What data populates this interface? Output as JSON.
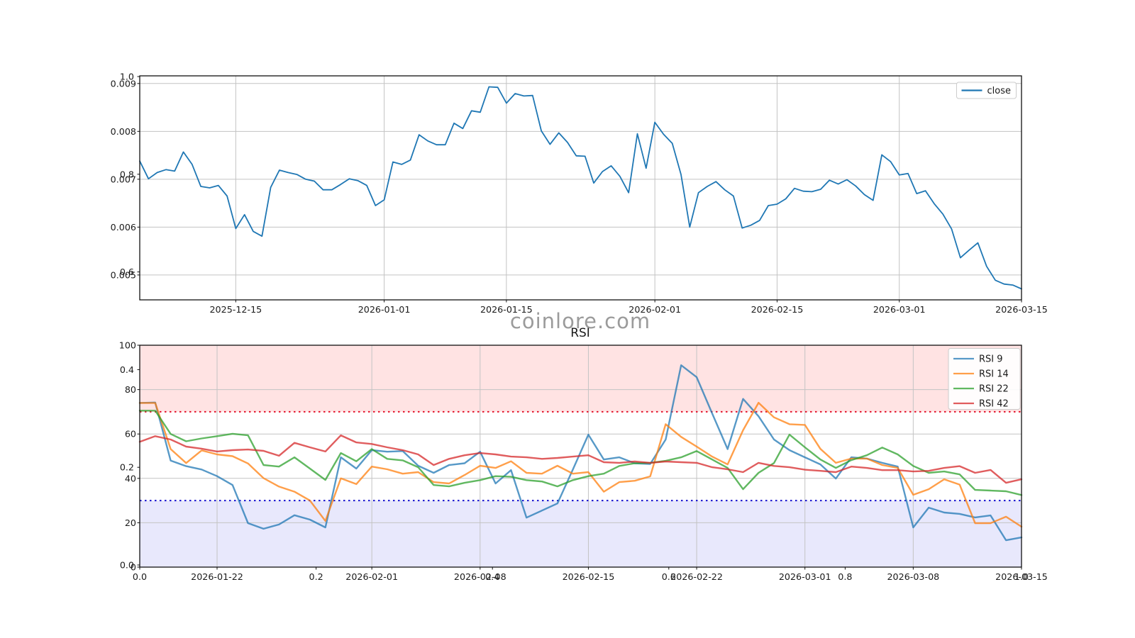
{
  "watermark": "coinlore.com",
  "hidden_axis": {
    "xtick_labels": [
      "0.0",
      "0.2",
      "0.4",
      "0.6",
      "0.8",
      "1.0"
    ],
    "ytick_labels": [
      "1.0",
      "0.8",
      "0.6",
      "0.4",
      "0.2",
      "0.0"
    ]
  },
  "chart_data": [
    {
      "id": "price",
      "type": "line",
      "title": "",
      "legend_position": "upper right",
      "grid": true,
      "x_start": "2025-12-04",
      "x_end": "2026-03-15",
      "xticks": [
        {
          "label": "2025-12-15",
          "f": 0.1089
        },
        {
          "label": "2026-01-01",
          "f": 0.2772
        },
        {
          "label": "2026-01-15",
          "f": 0.4158
        },
        {
          "label": "2026-02-01",
          "f": 0.5842
        },
        {
          "label": "2026-02-15",
          "f": 0.7228
        },
        {
          "label": "2026-03-01",
          "f": 0.8614
        },
        {
          "label": "2026-03-15",
          "f": 1.0
        }
      ],
      "yticks": [
        {
          "label": "0.009",
          "v": 0.009
        },
        {
          "label": "0.008",
          "v": 0.008
        },
        {
          "label": "0.007",
          "v": 0.007
        },
        {
          "label": "0.006",
          "v": 0.006
        },
        {
          "label": "0.005",
          "v": 0.005
        }
      ],
      "ylim": [
        0.00448,
        0.00916
      ],
      "series": [
        {
          "name": "close",
          "color": "#1f77b4",
          "width": 1.8,
          "values": [
            0.00738,
            0.00701,
            0.00714,
            0.0072,
            0.00717,
            0.00757,
            0.00731,
            0.00685,
            0.00682,
            0.00687,
            0.00665,
            0.00597,
            0.00626,
            0.00591,
            0.00581,
            0.00683,
            0.00719,
            0.00714,
            0.0071,
            0.007,
            0.00696,
            0.00678,
            0.00678,
            0.00689,
            0.00701,
            0.00697,
            0.00687,
            0.00645,
            0.00657,
            0.00736,
            0.00731,
            0.0074,
            0.00793,
            0.0078,
            0.00772,
            0.00772,
            0.00817,
            0.00806,
            0.00843,
            0.0084,
            0.00893,
            0.00892,
            0.00859,
            0.00879,
            0.00874,
            0.00875,
            0.00801,
            0.00773,
            0.00797,
            0.00777,
            0.00749,
            0.00748,
            0.00692,
            0.00716,
            0.00728,
            0.00706,
            0.00672,
            0.00795,
            0.00723,
            0.00819,
            0.00794,
            0.00775,
            0.0071,
            0.006,
            0.00672,
            0.00685,
            0.00695,
            0.00678,
            0.00665,
            0.00598,
            0.00604,
            0.00614,
            0.00645,
            0.00648,
            0.00659,
            0.00681,
            0.00675,
            0.00674,
            0.00679,
            0.00698,
            0.0069,
            0.00699,
            0.00686,
            0.00668,
            0.00656,
            0.00751,
            0.00737,
            0.00709,
            0.00712,
            0.0067,
            0.00676,
            0.00649,
            0.00627,
            0.00596,
            0.00536,
            0.00552,
            0.00567,
            0.00518,
            0.00489,
            0.00481,
            0.00479,
            0.00471
          ]
        }
      ]
    },
    {
      "id": "rsi",
      "type": "line",
      "title": "RSI",
      "legend_position": "upper right",
      "grid": true,
      "x_start": "2026-01-17",
      "x_end": "2026-03-15",
      "overbought_level": 70,
      "oversold_level": 30,
      "overbought_fill": "rgba(255,0,0,0.11)",
      "oversold_fill": "rgba(30,30,230,0.10)",
      "overbought_line_color": "#e3132b",
      "oversold_line_color": "#1612cf",
      "xticks": [
        {
          "label": "2026-01-22",
          "f": 0.0877
        },
        {
          "label": "2026-02-01",
          "f": 0.2632
        },
        {
          "label": "2026-02-08",
          "f": 0.386
        },
        {
          "label": "2026-02-15",
          "f": 0.5088
        },
        {
          "label": "2026-02-22",
          "f": 0.6316
        },
        {
          "label": "2026-03-01",
          "f": 0.7544
        },
        {
          "label": "2026-03-08",
          "f": 0.8772
        },
        {
          "label": "2026-03-15",
          "f": 1.0
        }
      ],
      "yticks": [
        {
          "label": "100",
          "v": 100
        },
        {
          "label": "80",
          "v": 80
        },
        {
          "label": "60",
          "v": 60
        },
        {
          "label": "40",
          "v": 40
        },
        {
          "label": "20",
          "v": 20
        },
        {
          "label": "0",
          "v": 0
        }
      ],
      "ylim": [
        0,
        100
      ],
      "series": [
        {
          "name": "RSI 9",
          "color": "rgba(31,119,180,0.75)",
          "width": 2.4,
          "values": [
            74.0,
            74.2,
            48.0,
            45.5,
            44.0,
            41.0,
            37.0,
            19.8,
            17.3,
            19.2,
            23.4,
            21.4,
            17.9,
            49.5,
            44.4,
            52.7,
            52.0,
            52.3,
            45.7,
            42.5,
            46.0,
            46.8,
            52.0,
            37.7,
            43.7,
            22.3,
            25.5,
            28.7,
            44.0,
            59.7,
            48.5,
            49.5,
            46.8,
            46.5,
            57.5,
            91.0,
            85.6,
            69.3,
            53.2,
            75.8,
            68.0,
            57.5,
            52.7,
            49.5,
            46.3,
            39.9,
            49.5,
            48.9,
            47.0,
            45.3,
            17.9,
            26.8,
            24.6,
            24.0,
            22.4,
            23.3,
            12.1,
            13.4
          ]
        },
        {
          "name": "RSI 14",
          "color": "rgba(255,127,14,0.75)",
          "width": 2.4,
          "values": [
            74.0,
            74.0,
            53.2,
            46.9,
            52.6,
            50.8,
            50.0,
            46.7,
            40.1,
            36.3,
            34.0,
            30.0,
            20.8,
            40.0,
            37.4,
            45.3,
            44.1,
            42.1,
            42.8,
            38.3,
            37.7,
            41.5,
            45.7,
            44.7,
            47.7,
            42.5,
            42.1,
            45.7,
            42.1,
            42.8,
            34.0,
            38.3,
            38.9,
            40.9,
            64.4,
            58.7,
            54.3,
            49.8,
            46.3,
            61.7,
            74.1,
            67.5,
            64.4,
            64.1,
            53.3,
            47.0,
            48.9,
            48.9,
            46.0,
            44.7,
            32.6,
            35.1,
            39.6,
            37.2,
            19.8,
            19.8,
            22.7,
            18.2
          ]
        },
        {
          "name": "RSI 22",
          "color": "rgba(44,160,44,0.75)",
          "width": 2.4,
          "values": [
            70.5,
            70.5,
            60.0,
            56.7,
            58.0,
            59.0,
            60.1,
            59.4,
            46.0,
            45.3,
            49.5,
            44.4,
            39.3,
            51.4,
            47.7,
            53.2,
            48.8,
            48.1,
            45.0,
            37.0,
            36.4,
            38.0,
            39.2,
            41.0,
            40.7,
            39.2,
            38.6,
            36.4,
            39.2,
            41.0,
            42.1,
            45.6,
            46.8,
            47.0,
            47.9,
            49.5,
            52.3,
            48.5,
            44.7,
            35.1,
            42.5,
            46.9,
            59.7,
            54.0,
            48.5,
            44.7,
            48.2,
            50.4,
            53.9,
            50.8,
            45.6,
            42.5,
            43.1,
            41.8,
            34.8,
            34.5,
            34.2,
            32.5
          ]
        },
        {
          "name": "RSI 42",
          "color": "rgba(214,39,40,0.75)",
          "width": 2.4,
          "values": [
            56.5,
            59.0,
            57.5,
            54.3,
            53.4,
            52.1,
            52.7,
            53.0,
            52.4,
            50.2,
            56.0,
            54.0,
            52.1,
            59.4,
            56.2,
            55.5,
            54.0,
            52.7,
            50.8,
            46.0,
            48.8,
            50.4,
            51.4,
            50.8,
            49.8,
            49.5,
            48.8,
            49.2,
            49.8,
            50.4,
            47.3,
            47.0,
            47.6,
            47.0,
            47.6,
            47.3,
            47.0,
            45.0,
            44.1,
            42.8,
            47.0,
            45.6,
            45.0,
            43.9,
            43.4,
            42.8,
            45.3,
            44.7,
            43.7,
            43.7,
            43.1,
            43.4,
            44.7,
            45.5,
            42.5,
            43.8,
            38.0,
            39.6
          ]
        }
      ]
    }
  ]
}
